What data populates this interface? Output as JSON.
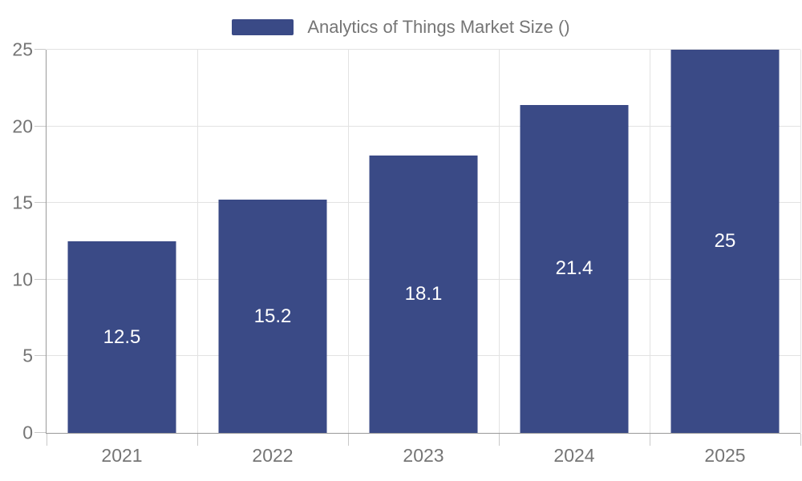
{
  "legend": {
    "label": "Analytics of Things Market Size ()"
  },
  "colors": {
    "bar": "#3a4a86",
    "axis_line": "#9a9a9a",
    "gridline": "#e2e2e2",
    "tick": "#c9c9c9",
    "axis_text": "#757575",
    "legend_text": "#757575",
    "value_text": "#ffffff",
    "background": "#ffffff"
  },
  "chart_data": {
    "type": "bar",
    "title": "Analytics of Things Market Size ()",
    "categories": [
      "2021",
      "2022",
      "2023",
      "2024",
      "2025"
    ],
    "series": [
      {
        "name": "Analytics of Things Market Size ()",
        "values": [
          12.5,
          15.2,
          18.1,
          21.4,
          25
        ]
      }
    ],
    "value_labels": [
      "12.5",
      "15.2",
      "18.1",
      "21.4",
      "25"
    ],
    "xlabel": "",
    "ylabel": "",
    "ylim": [
      0,
      25
    ],
    "yticks": [
      0,
      5,
      10,
      15,
      20,
      25
    ],
    "grid": true,
    "legend_position": "top-center",
    "bar_color": "#3a4a86",
    "value_label_position": "inside-center"
  }
}
